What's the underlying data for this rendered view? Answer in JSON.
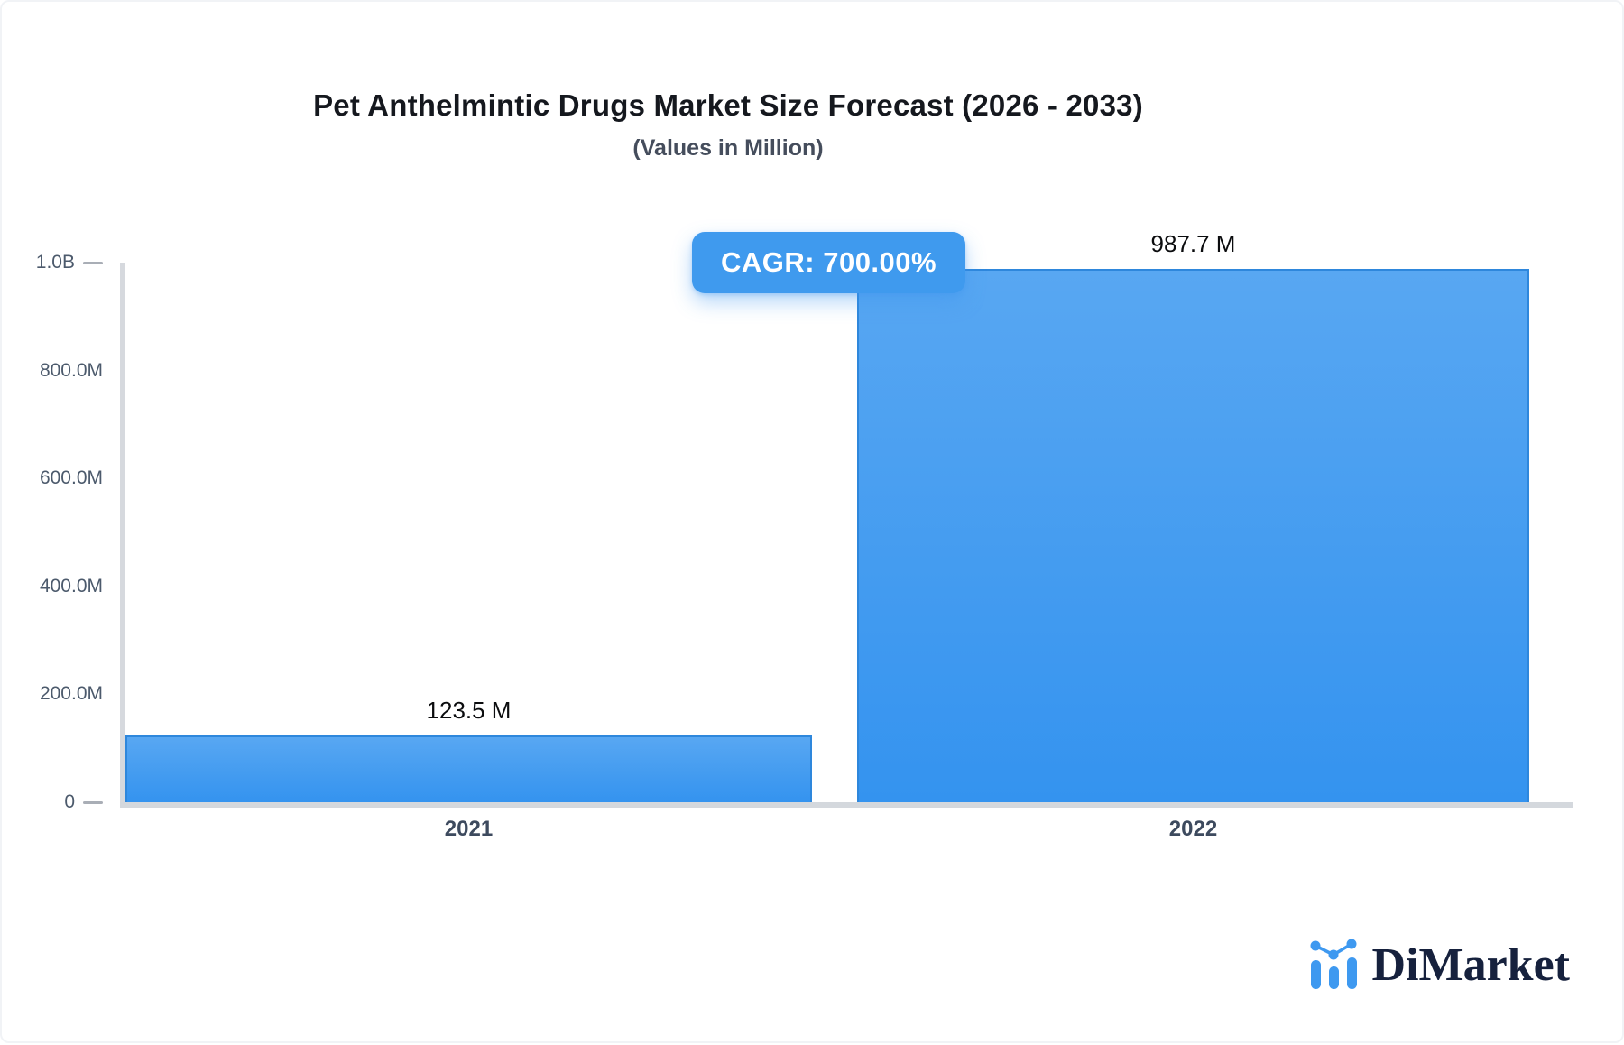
{
  "page": {
    "title": "Pet Anthelmintic Drugs Market Size Forecast (2026 - 2033)",
    "subtitle": "(Values in Million)"
  },
  "badge": {
    "label": "CAGR: 700.00%"
  },
  "logo": {
    "name": "DiMarket"
  },
  "colors": {
    "bar_top": "#58A7F2",
    "bar_bottom": "#3493EF",
    "bar_border": "#2E87DC",
    "badge_bg": "#3F9AEE",
    "axis_gray": "#D5D9DE",
    "tick_dash": "#A9AEB6",
    "title_text": "#15181E",
    "axis_label": "#4C5A6C",
    "logo_navy": "#16213D",
    "logo_blue": "#3E99F0"
  },
  "chart_data": {
    "type": "bar",
    "title": "Pet Anthelmintic Drugs Market Size Forecast (2026 - 2033)",
    "subtitle": "(Values in Million)",
    "categories": [
      "2021",
      "2022"
    ],
    "values": [
      123.5,
      987.7
    ],
    "value_labels": [
      "123.5 M",
      "987.7 M"
    ],
    "cagr": "700.00%",
    "xlabel": "",
    "ylabel": "",
    "ylim": [
      0,
      1000
    ],
    "grid": false,
    "legend": "none",
    "yticks": [
      {
        "value": 1000,
        "label": "1.0B",
        "dash": true
      },
      {
        "value": 800,
        "label": "800.0M",
        "dash": false
      },
      {
        "value": 600,
        "label": "600.0M",
        "dash": false
      },
      {
        "value": 400,
        "label": "400.0M",
        "dash": false
      },
      {
        "value": 200,
        "label": "200.0M",
        "dash": false
      },
      {
        "value": 0,
        "label": "0",
        "dash": true
      }
    ]
  }
}
